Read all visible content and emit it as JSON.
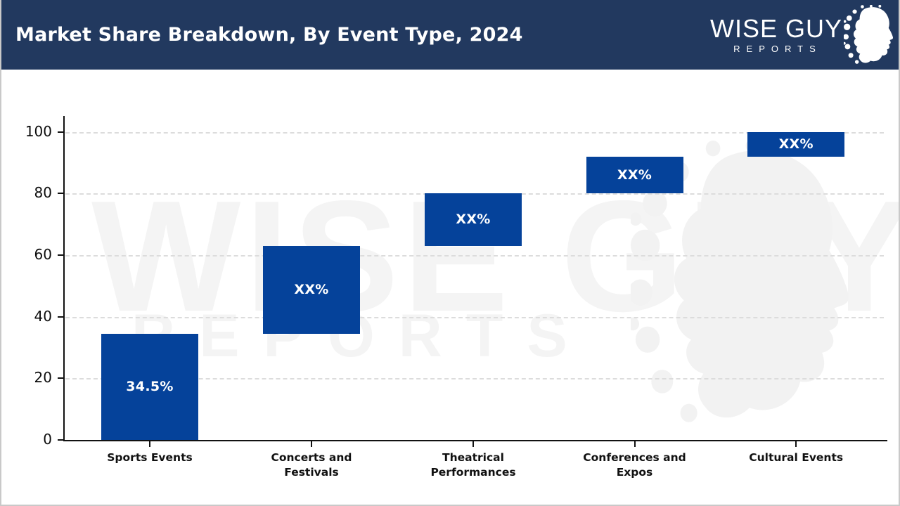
{
  "header": {
    "title": "Market Share Breakdown, By Event Type, 2024",
    "bg_color": "#22395f",
    "brand": {
      "line1": "WISE GUY",
      "line2": "REPORTS"
    }
  },
  "watermark": {
    "line1": "WISE GUY",
    "line2": "REPORTS",
    "color": "#f4f4f4"
  },
  "chart_data": {
    "type": "bar",
    "subtype": "waterfall",
    "title": "Market Share Breakdown, By Event Type, 2024",
    "xlabel": "",
    "ylabel": "",
    "ylim": [
      0,
      105
    ],
    "yticks": [
      0,
      20,
      40,
      60,
      80,
      100
    ],
    "grid": "dashed-horizontal",
    "legend": "none",
    "bar_color": "#05429a",
    "label_color": "#ffffff",
    "axis_color": "#111111",
    "grid_color": "#dcdcdc",
    "segments": [
      {
        "category": "Sports Events",
        "start": 0,
        "end": 34.5,
        "label": "34.5%"
      },
      {
        "category": "Concerts and\nFestivals",
        "start": 34.5,
        "end": 63,
        "label": "XX%"
      },
      {
        "category": "Theatrical\nPerformances",
        "start": 63,
        "end": 80,
        "label": "XX%"
      },
      {
        "category": "Conferences and\nExpos",
        "start": 80,
        "end": 92,
        "label": "XX%"
      },
      {
        "category": "Cultural Events",
        "start": 92,
        "end": 100,
        "label": "XX%"
      }
    ]
  }
}
